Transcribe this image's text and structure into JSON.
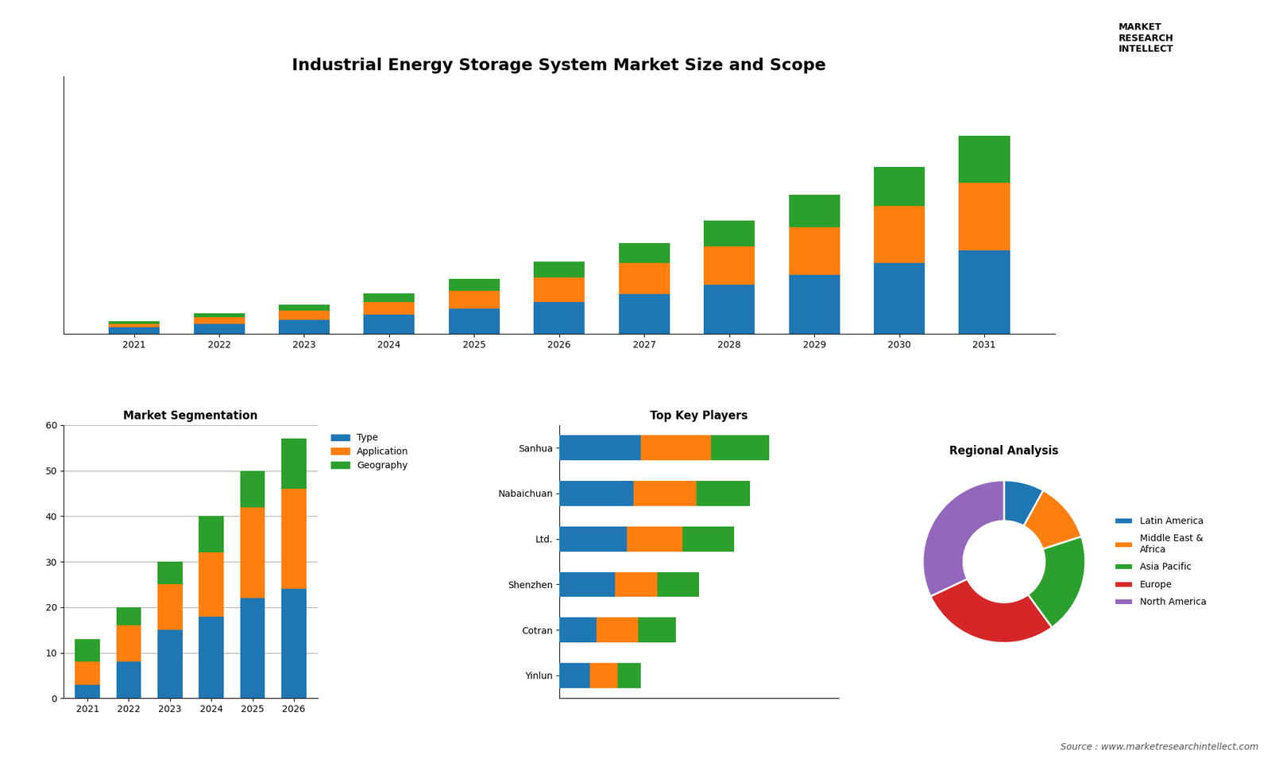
{
  "chart_data": [
    {
      "type": "bar",
      "stacked": true,
      "title": "Industrial Energy Storage System Market Size and Scope",
      "categories": [
        "2021",
        "2022",
        "2023",
        "2024",
        "2025",
        "2026",
        "2027",
        "2028",
        "2029",
        "2030",
        "2031"
      ],
      "series": [
        {
          "values": [
            1.0,
            1.6,
            2.2,
            3.0,
            3.9,
            5.0,
            6.2,
            7.6,
            9.2,
            11.0,
            13.0
          ]
        },
        {
          "values": [
            0.6,
            1.0,
            1.4,
            2.0,
            2.8,
            3.8,
            4.8,
            6.0,
            7.4,
            8.8,
            10.4
          ]
        },
        {
          "values": [
            0.4,
            0.6,
            0.9,
            1.3,
            1.8,
            2.4,
            3.1,
            4.0,
            5.0,
            6.1,
            7.3
          ]
        }
      ],
      "ylim": [
        0,
        40
      ],
      "tick_labels": "x",
      "grid": false,
      "annotations": [
        {
          "text": "MARKET\nRESEARCH\nINTELLECT"
        },
        {
          "text": "Source : www.marketresearchintellect.com"
        }
      ]
    },
    {
      "type": "bar",
      "stacked": true,
      "title": "Market Segmentation",
      "categories": [
        "2021",
        "2022",
        "2023",
        "2024",
        "2025",
        "2026"
      ],
      "series": [
        {
          "name": "Type",
          "values": [
            3,
            8,
            15,
            18,
            22,
            24
          ]
        },
        {
          "name": "Application",
          "values": [
            5,
            8,
            10,
            14,
            20,
            22
          ]
        },
        {
          "name": "Geography",
          "values": [
            5,
            4,
            5,
            8,
            8,
            11
          ]
        }
      ],
      "ylim": [
        0,
        60
      ],
      "yticks": [
        0,
        10,
        20,
        30,
        40,
        50,
        60
      ],
      "grid": true,
      "legend": "upper left"
    },
    {
      "type": "bar",
      "stacked": true,
      "orientation": "horizontal",
      "title": "Top Key Players",
      "categories": [
        "Sanhua",
        "Nabaichuan",
        "Ltd.",
        "Shenzhen",
        "Cotran",
        "Yinlun"
      ],
      "series": [
        {
          "values": [
            3.5,
            3.2,
            2.9,
            2.4,
            1.6,
            1.3
          ]
        },
        {
          "values": [
            3.0,
            2.7,
            2.4,
            1.8,
            1.8,
            1.2
          ]
        },
        {
          "values": [
            2.5,
            2.3,
            2.2,
            1.8,
            1.6,
            1.0
          ]
        }
      ],
      "xlim": [
        0,
        12
      ],
      "tick_labels": "y",
      "grid": false
    },
    {
      "type": "pie",
      "title": "Regional Analysis",
      "categories": [
        "Latin America",
        "Middle East &\nAfrica",
        "Asia Pacific",
        "Europe",
        "North America"
      ],
      "values": [
        8,
        12,
        20,
        28,
        32
      ],
      "legend": "center left"
    }
  ]
}
